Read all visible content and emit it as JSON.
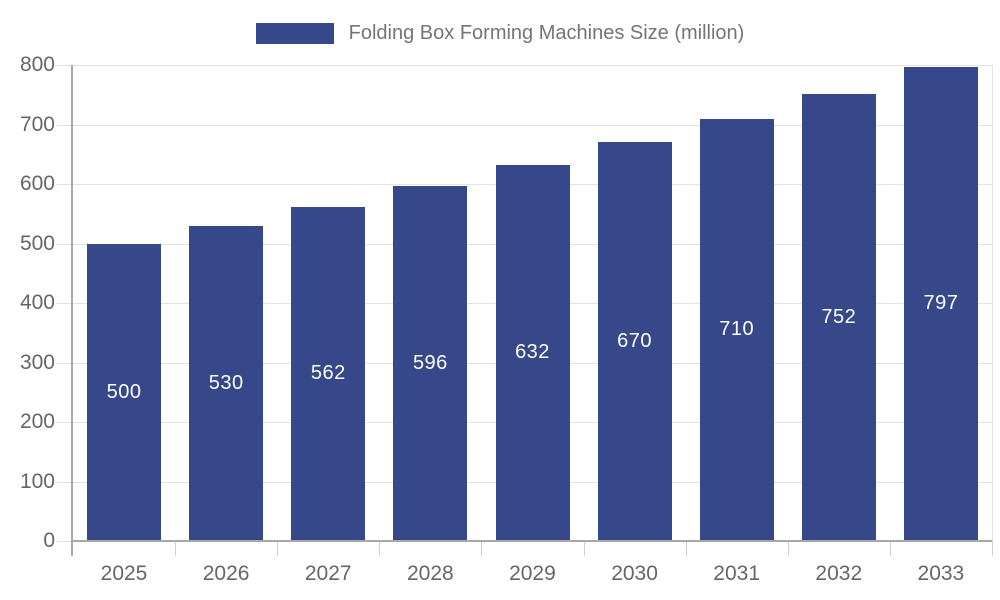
{
  "chart_data": {
    "type": "bar",
    "title": "Folding Box Forming Machines Size (million)",
    "legend": {
      "label": "Folding Box Forming Machines Size (million)",
      "position": "top-center"
    },
    "categories": [
      "2025",
      "2026",
      "2027",
      "2028",
      "2029",
      "2030",
      "2031",
      "2032",
      "2033"
    ],
    "values": [
      500,
      530,
      562,
      596,
      632,
      670,
      710,
      752,
      797
    ],
    "xlabel": "",
    "ylabel": "",
    "ylim": [
      0,
      800
    ],
    "ytick_step": 100,
    "grid": true,
    "bar_value_labels_shown": true,
    "colors": {
      "bar": "#36488a",
      "bar_value_label": "#ffffff",
      "legend_text": "#757575",
      "axis_tick_label": "#666666",
      "gridline": "#e3e3e3",
      "axis_line": "#a8a8a8",
      "tick_mark": "#d0d0d0",
      "plot_right_border": "#e3e3e3",
      "background": "#ffffff"
    }
  }
}
